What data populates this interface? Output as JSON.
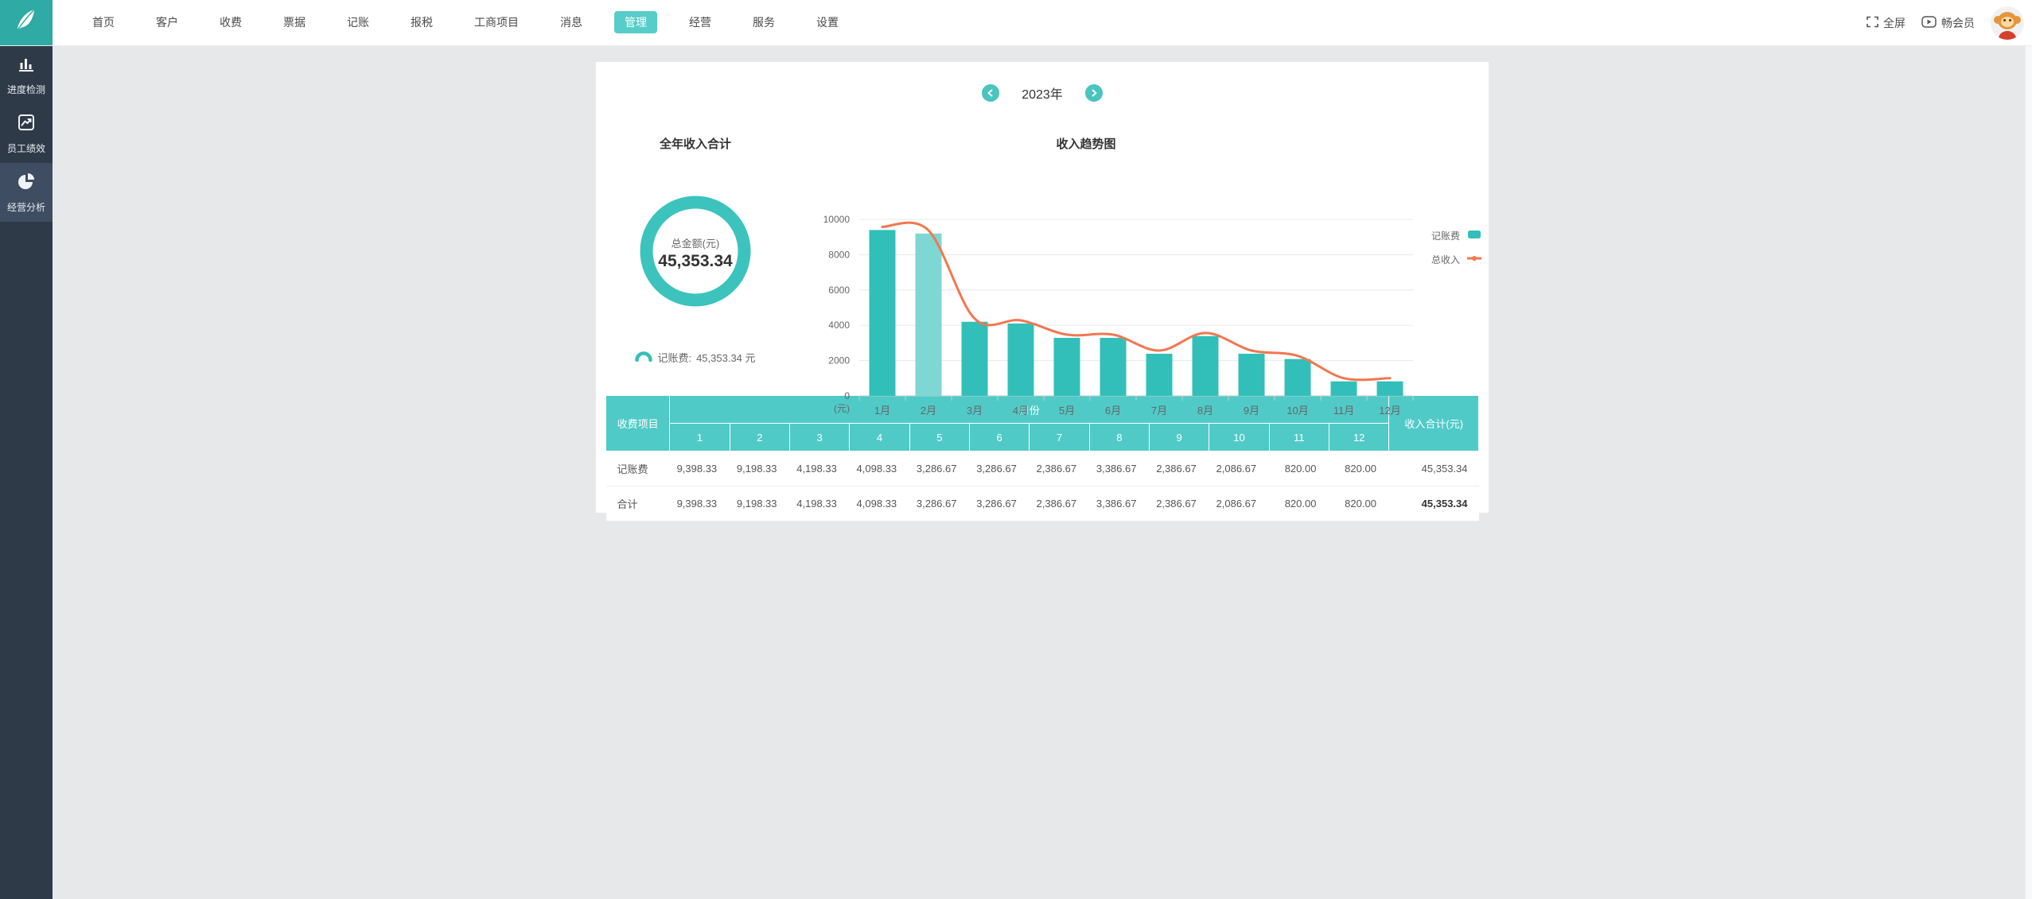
{
  "topbar": {
    "nav": [
      {
        "label": "首页",
        "active": false
      },
      {
        "label": "客户",
        "active": false
      },
      {
        "label": "收费",
        "active": false
      },
      {
        "label": "票据",
        "active": false
      },
      {
        "label": "记账",
        "active": false
      },
      {
        "label": "报税",
        "active": false
      },
      {
        "label": "工商项目",
        "active": false
      },
      {
        "label": "消息",
        "active": false
      },
      {
        "label": "管理",
        "active": true
      },
      {
        "label": "经营",
        "active": false
      },
      {
        "label": "服务",
        "active": false
      },
      {
        "label": "设置",
        "active": false
      }
    ],
    "fullscreen_label": "全屏",
    "member_label": "畅会员"
  },
  "sidebar": {
    "items": [
      {
        "label": "进度检测",
        "icon": "bar-chart-icon",
        "active": false
      },
      {
        "label": "员工绩效",
        "icon": "line-chart-icon",
        "active": false
      },
      {
        "label": "经营分析",
        "icon": "pie-chart-icon",
        "active": true
      }
    ]
  },
  "year_nav": {
    "year_label": "2023年"
  },
  "summary": {
    "title": "全年收入合计",
    "donut_center_label": "总金额(元)",
    "donut_center_value": "45,353.34",
    "legend_label": "记账费:",
    "legend_value": "45,353.34 元"
  },
  "chart_data": {
    "type": "bar",
    "title": "收入趋势图",
    "categories": [
      "1月",
      "2月",
      "3月",
      "4月",
      "5月",
      "6月",
      "7月",
      "8月",
      "9月",
      "10月",
      "11月",
      "12月"
    ],
    "series": [
      {
        "name": "记账费",
        "type": "bar",
        "color": "#32bfba",
        "values": [
          9398.33,
          9198.33,
          4198.33,
          4098.33,
          3286.67,
          3286.67,
          2386.67,
          3386.67,
          2386.67,
          2086.67,
          820.0,
          820.0
        ]
      },
      {
        "name": "总收入",
        "type": "line",
        "color": "#f3764f",
        "values": [
          9398.33,
          9198.33,
          4198.33,
          4098.33,
          3286.67,
          3286.67,
          2386.67,
          3386.67,
          2386.67,
          2086.67,
          820.0,
          820.0
        ]
      }
    ],
    "highlight_bar_index": 1,
    "highlight_color": "#7ed7d3",
    "ylim": [
      0,
      10000
    ],
    "yticks": [
      0,
      2000,
      4000,
      6000,
      8000,
      10000
    ],
    "y_unit": "(元)",
    "grid": true,
    "legend_position": "right"
  },
  "table": {
    "item_header": "收费项目",
    "month_header": "月份",
    "total_header": "收入合计(元)",
    "month_cols": [
      "1",
      "2",
      "3",
      "4",
      "5",
      "6",
      "7",
      "8",
      "9",
      "10",
      "11",
      "12"
    ],
    "rows": [
      {
        "item": "记账费",
        "values": [
          "9,398.33",
          "9,198.33",
          "4,198.33",
          "4,098.33",
          "3,286.67",
          "3,286.67",
          "2,386.67",
          "3,386.67",
          "2,386.67",
          "2,086.67",
          "820.00",
          "820.00"
        ],
        "total": "45,353.34",
        "bold_total": false
      },
      {
        "item": "合计",
        "values": [
          "9,398.33",
          "9,198.33",
          "4,198.33",
          "4,098.33",
          "3,286.67",
          "3,286.67",
          "2,386.67",
          "3,386.67",
          "2,386.67",
          "2,086.67",
          "820.00",
          "820.00"
        ],
        "total": "45,353.34",
        "bold_total": true
      }
    ]
  },
  "colors": {
    "accent_teal": "#32bfba",
    "accent_teal_light": "#7ed7d3",
    "logo_teal": "#2faaa4",
    "pill_teal": "#56cdc9",
    "table_header_teal": "#50cac7",
    "orange_line": "#f3764f",
    "sidebar_dark": "#2f3a49",
    "sidebar_active": "#3e4d61",
    "donut_teal": "#3cc3bd",
    "main_bg": "#e6e8ea"
  }
}
